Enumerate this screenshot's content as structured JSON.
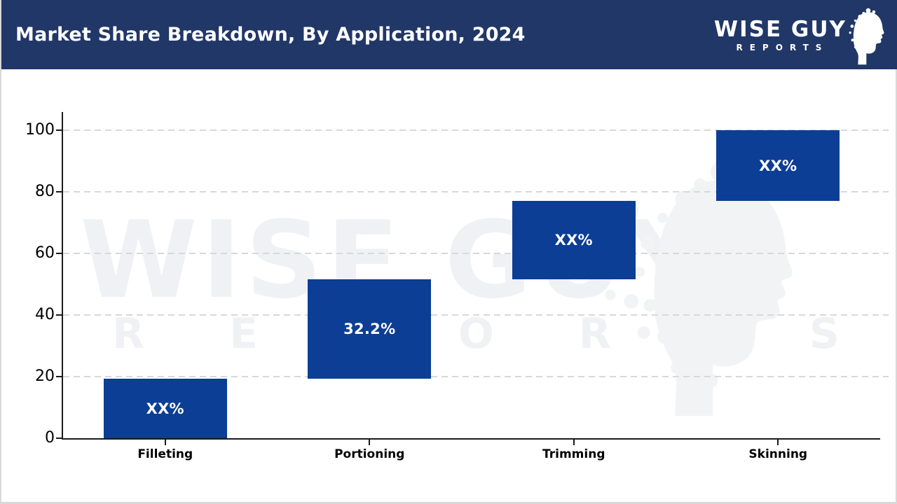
{
  "header": {
    "title": "Market Share Breakdown, By Application, 2024",
    "logo": {
      "name": "WISE GUY",
      "sub": "REPORTS"
    }
  },
  "watermark": {
    "line1": "WISE GUY",
    "line2": "R E P O R T S"
  },
  "chart_data": {
    "type": "bar",
    "subtype": "waterfall",
    "title": "Market Share Breakdown, By Application, 2024",
    "categories": [
      "Filleting",
      "Portioning",
      "Trimming",
      "Skinning"
    ],
    "segments": [
      {
        "category": "Filleting",
        "start": 0,
        "end": 19.3,
        "label": "XX%"
      },
      {
        "category": "Portioning",
        "start": 19.3,
        "end": 51.5,
        "label": "32.2%"
      },
      {
        "category": "Trimming",
        "start": 51.5,
        "end": 77.0,
        "label": "XX%"
      },
      {
        "category": "Skinning",
        "start": 77.0,
        "end": 100,
        "label": "XX%"
      }
    ],
    "xlabel": "",
    "ylabel": "",
    "ylim": [
      0,
      100
    ],
    "yticks": [
      0,
      20,
      40,
      60,
      80,
      100
    ],
    "grid": "horizontal-dashed",
    "legend": "none",
    "bar_color": "#0B3E94"
  },
  "colors": {
    "header_bg": "#213767",
    "bar": "#0B3E94",
    "grid": "#d8d8d8",
    "axis": "#1a1a1a",
    "watermark": "#f0f1f4",
    "border": "#d9d9d9",
    "bar_label_text": "#ffffff"
  }
}
